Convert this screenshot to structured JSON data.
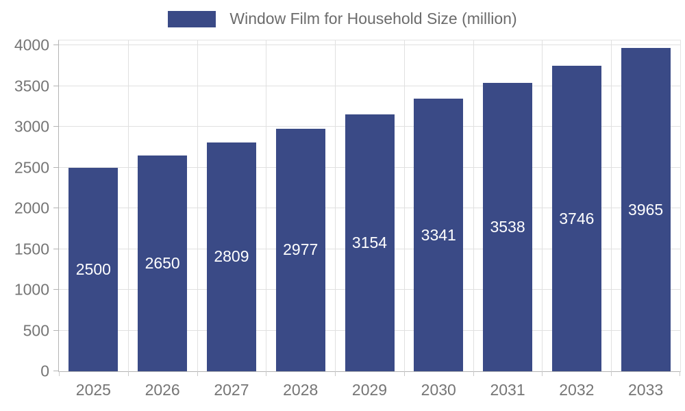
{
  "chart_data": {
    "type": "bar",
    "title": "Window Film for Household Size (million)",
    "categories": [
      "2025",
      "2026",
      "2027",
      "2028",
      "2029",
      "2030",
      "2031",
      "2032",
      "2033"
    ],
    "values": [
      2500,
      2650,
      2809,
      2977,
      3154,
      3341,
      3538,
      3746,
      3965
    ],
    "yticks": [
      0,
      500,
      1000,
      1500,
      2000,
      2500,
      3000,
      3500,
      4000
    ],
    "ylim": [
      0,
      4000
    ],
    "xlabel": "",
    "ylabel": "",
    "grid": true,
    "legend_position": "top-center",
    "value_labels": "inside-center",
    "colors": {
      "bar": "#3A4A86",
      "bar_label": "#FFFFFF",
      "grid": "#E0E0E0",
      "axis": "#B3B3B3",
      "tick_text": "#757575",
      "title_text": "#6B6B6B"
    }
  }
}
